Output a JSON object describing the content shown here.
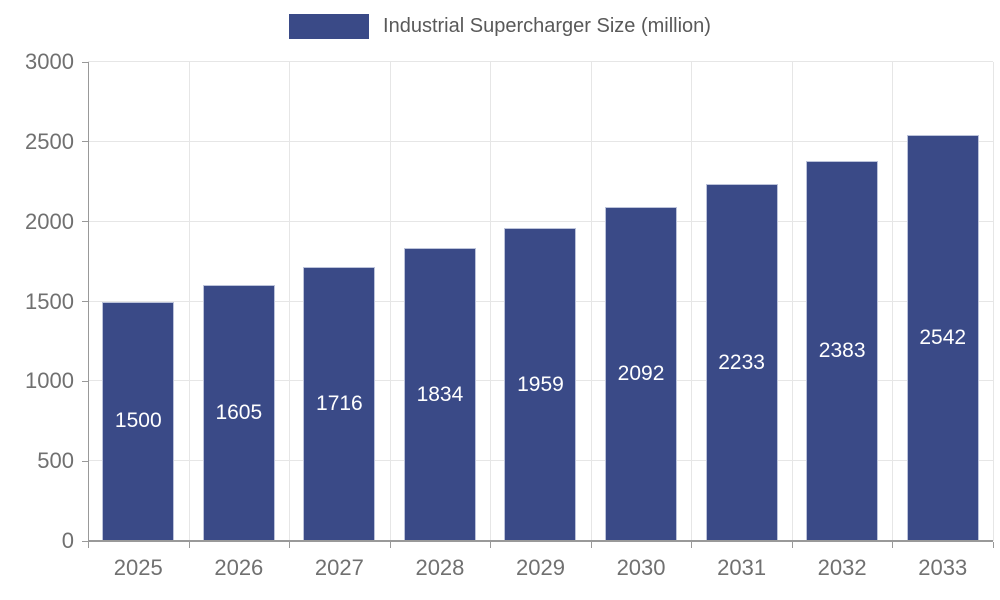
{
  "legend": {
    "label": "Industrial Supercharger Size (million)",
    "swatch": "bar-color-swatch"
  },
  "colors": {
    "bar": "#3a4a87",
    "bar_border": "#bcc3da",
    "grid": "#e6e6e6",
    "axis": "#999999",
    "tick_label": "#707070",
    "legend_text": "#595959",
    "value_label": "#ffffff",
    "background": "#ffffff"
  },
  "chart_data": {
    "type": "bar",
    "title": "Industrial Supercharger Size (million)",
    "categories": [
      "2025",
      "2026",
      "2027",
      "2028",
      "2029",
      "2030",
      "2031",
      "2032",
      "2033"
    ],
    "values": [
      1500,
      1605,
      1716,
      1834,
      1959,
      2092,
      2233,
      2383,
      2542
    ],
    "xlabel": "",
    "ylabel": "",
    "ylim": [
      0,
      3000
    ],
    "yticks": [
      0,
      500,
      1000,
      1500,
      2000,
      2500,
      3000
    ],
    "grid": true,
    "legend_position": "top-center",
    "value_label_position": "inside-center"
  }
}
